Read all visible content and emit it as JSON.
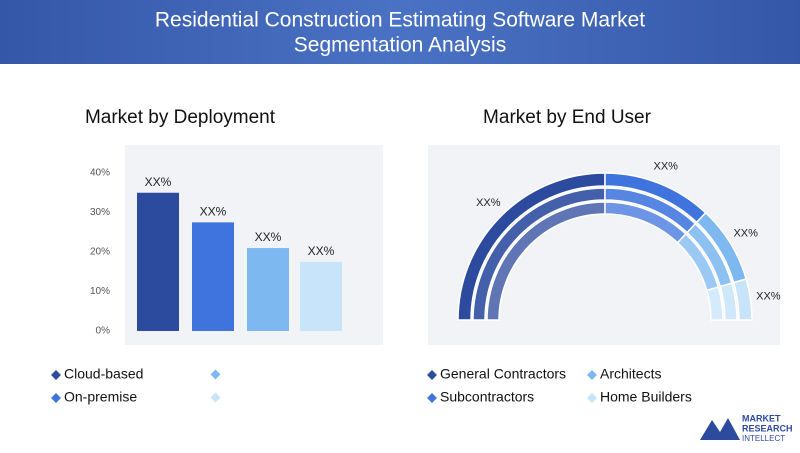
{
  "header": {
    "title": [
      "Residential Construction Estimating Software Market",
      "Segmentation Analysis"
    ]
  },
  "chart_data": [
    {
      "type": "bar",
      "title": "Market by Deployment",
      "categories": [
        null,
        null,
        null,
        null
      ],
      "values": [
        35,
        27.5,
        21,
        17.5
      ],
      "value_labels": [
        "XX%",
        "XX%",
        "XX%",
        "XX%"
      ],
      "colors": [
        "#2c4a9e",
        "#3f74de",
        "#7db8f0",
        "#c8e4fa"
      ],
      "ylim": [
        0,
        40
      ],
      "yticks": [
        {
          "value": 0,
          "label": "0%"
        },
        {
          "value": 10,
          "label": "10%"
        },
        {
          "value": 20,
          "label": "20%"
        },
        {
          "value": 30,
          "label": "30%"
        },
        {
          "value": 40,
          "label": "40%"
        }
      ],
      "legend": [
        {
          "name": "Cloud-based",
          "color": "#2c4a9e"
        },
        {
          "name": "On-premise",
          "color": "#3f74de"
        }
      ]
    },
    {
      "type": "half-donut",
      "title": "Market by End User",
      "categories": [
        "General Contractors",
        "Subcontractors",
        "Architects",
        "Home Builders"
      ],
      "values": [
        50,
        24,
        17,
        9
      ],
      "value_labels": [
        "XX%",
        "XX%",
        "XX%",
        "XX%"
      ],
      "colors": [
        "#2c4a9e",
        "#3f74de",
        "#7db8f0",
        "#c8e4fa"
      ]
    }
  ],
  "logo": [
    "MARKET",
    "RESEARCH",
    "INTELLECT"
  ]
}
